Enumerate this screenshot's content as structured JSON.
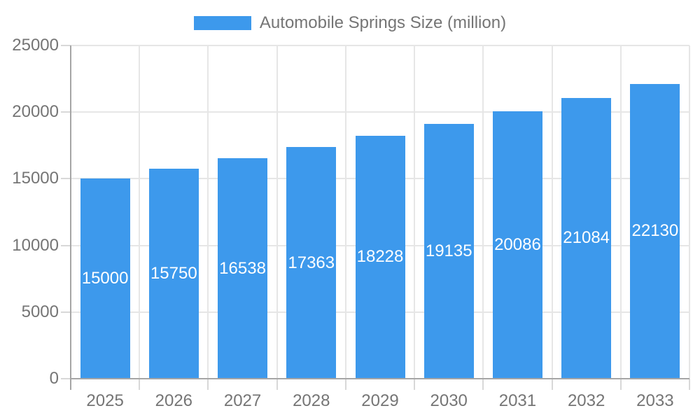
{
  "legend": {
    "series_label": "Automobile Springs Size (million)"
  },
  "colors": {
    "bar": "#3d99ec",
    "bar_label": "#ffffff",
    "axis_line": "#a6a6a6",
    "grid_line": "#e6e6e6",
    "tick_mark": "#d8d8d8",
    "label_text": "#757575",
    "background": "#ffffff"
  },
  "chart_data": {
    "type": "bar",
    "title": "Automobile Springs Size (million)",
    "categories": [
      "2025",
      "2026",
      "2027",
      "2028",
      "2029",
      "2030",
      "2031",
      "2032",
      "2033"
    ],
    "series": [
      {
        "name": "Automobile Springs Size (million)",
        "values": [
          15000,
          15750,
          16538,
          17363,
          18228,
          19135,
          20086,
          21084,
          22130
        ]
      }
    ],
    "data_labels": [
      "15000",
      "15750",
      "16538",
      "17363",
      "18228",
      "19135",
      "20086",
      "21084",
      "22130"
    ],
    "xlabel": "",
    "ylabel": "",
    "ylim": [
      0,
      25000
    ],
    "y_ticks": [
      0,
      5000,
      10000,
      15000,
      20000,
      25000
    ],
    "y_tick_labels": [
      "0",
      "5000",
      "10000",
      "15000",
      "20000",
      "25000"
    ],
    "grid": true,
    "legend_position": "top",
    "data_labels_shown": true,
    "data_label_position": "inside-center"
  }
}
